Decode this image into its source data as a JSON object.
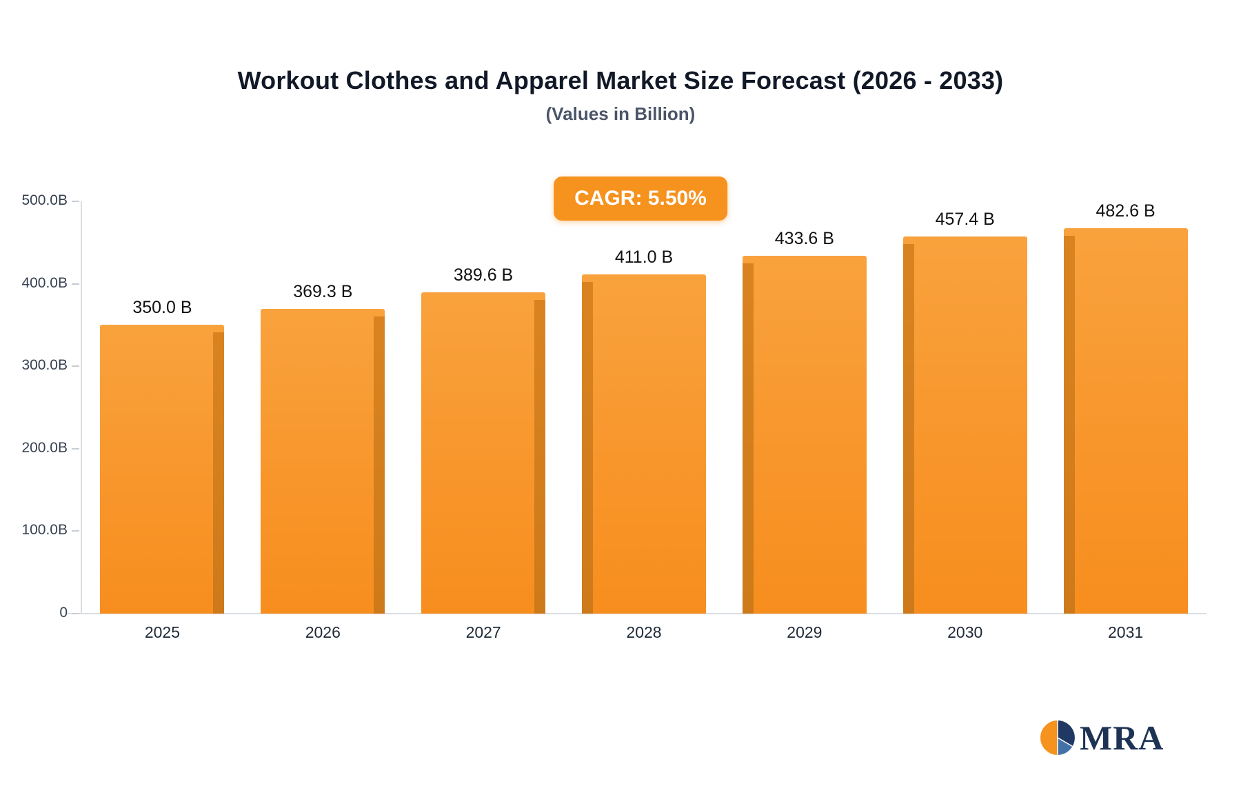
{
  "header": {
    "title": "Workout Clothes and Apparel Market Size Forecast (2026 - 2033)",
    "subtitle": "(Values in Billion)"
  },
  "badge": {
    "label": "CAGR: 5.50%",
    "color": "#F6921E"
  },
  "chart_data": {
    "type": "bar",
    "categories": [
      "2025",
      "2026",
      "2027",
      "2028",
      "2029",
      "2030",
      "2031"
    ],
    "values": [
      350.0,
      369.3,
      389.6,
      411.0,
      433.6,
      457.4,
      482.6
    ],
    "value_labels": [
      "350.0 B",
      "369.3 B",
      "389.6 B",
      "411.0 B",
      "433.6 B",
      "457.4 B",
      "482.6 B"
    ],
    "title": "Workout Clothes and Apparel Market Size Forecast (2026 - 2033)",
    "subtitle": "(Values in Billion)",
    "xlabel": "",
    "ylabel": "",
    "ylim": [
      0,
      500
    ],
    "y_ticks": [
      {
        "label": "500.0B",
        "value": 500
      },
      {
        "label": "400.0B",
        "value": 400
      },
      {
        "label": "300.0B",
        "value": 300
      },
      {
        "label": "200.0B",
        "value": 200
      },
      {
        "label": "100.0B",
        "value": 100
      },
      {
        "label": "0",
        "value": 0
      }
    ],
    "grid": false,
    "legend": false,
    "bar_color": "#F8952A",
    "bar_edge_color": "#CE7A1A",
    "annotation": "CAGR: 5.50%"
  },
  "logo": {
    "text": "MRA",
    "icon": "pie-chart-logo-icon",
    "colors": {
      "orange": "#F6921E",
      "navy": "#1F3864",
      "blue": "#4472A8",
      "text": "#1e3354"
    }
  }
}
